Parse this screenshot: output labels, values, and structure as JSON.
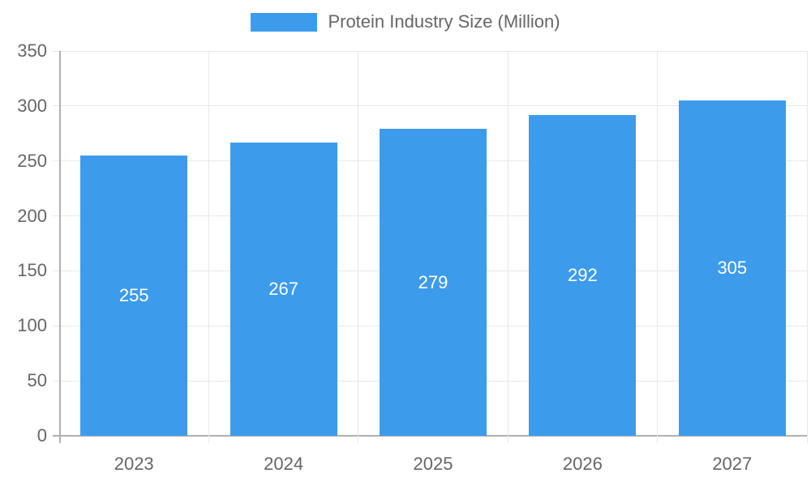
{
  "chart_data": {
    "type": "bar",
    "categories": [
      "2023",
      "2024",
      "2025",
      "2026",
      "2027"
    ],
    "series": [
      {
        "name": "Protein Industry Size (Million)",
        "values": [
          255,
          267,
          279,
          292,
          305
        ]
      }
    ],
    "value_labels": [
      255,
      267,
      279,
      292,
      305
    ],
    "title": "",
    "xlabel": "",
    "ylabel": "",
    "ylim": [
      0,
      350
    ],
    "yticks": [
      0,
      50,
      100,
      150,
      200,
      250,
      300,
      350
    ],
    "grid": true,
    "legend_position": "top-center",
    "value_label_position": "inside-center"
  },
  "legend": {
    "label": "Protein Industry Size (Million)"
  },
  "colors": {
    "bar": "#3D9BEC",
    "grid": "#e8e8e8",
    "axis": "#b0b0b0",
    "tick_text": "#666666",
    "value_text": "#ffffff",
    "background": "#ffffff"
  }
}
